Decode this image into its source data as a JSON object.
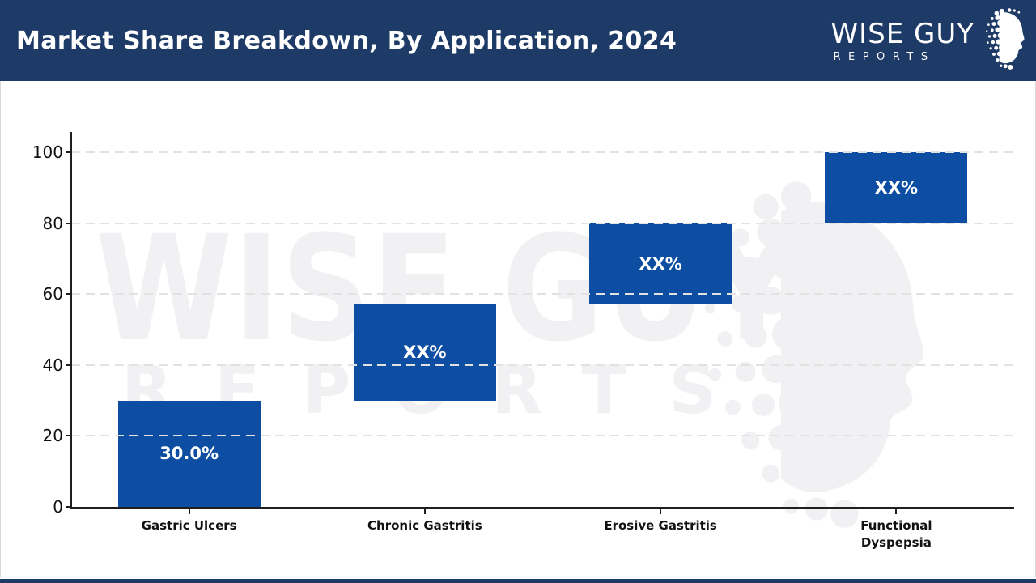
{
  "header": {
    "title": "Market Share Breakdown, By Application, 2024",
    "logo": {
      "brand": "WISE GUY",
      "sub": "REPORTS"
    }
  },
  "watermark": {
    "brand": "WISE GUY",
    "sub": "REPORTS"
  },
  "chart_data": {
    "type": "bar",
    "subtype": "floating-segment-breakdown",
    "title": "Market Share Breakdown, By Application, 2024",
    "categories": [
      "Gastric Ulcers",
      "Chronic Gastritis",
      "Erosive Gastritis",
      "Functional\nDyspepsia"
    ],
    "series": [
      {
        "name": "Market share (%)",
        "segments": [
          {
            "category": "Gastric Ulcers",
            "start": 0,
            "end": 30,
            "label": "30.0%"
          },
          {
            "category": "Chronic Gastritis",
            "start": 30,
            "end": 57,
            "label": "XX%"
          },
          {
            "category": "Erosive Gastritis",
            "start": 57,
            "end": 80,
            "label": "XX%"
          },
          {
            "category": "Functional Dyspepsia",
            "start": 80,
            "end": 100,
            "label": "XX%"
          }
        ]
      }
    ],
    "yticks": [
      0,
      20,
      40,
      60,
      80,
      100
    ],
    "ylim": [
      0,
      105.7
    ],
    "xlabel": "",
    "ylabel": "",
    "grid": "horizontal dashed",
    "legend": "none",
    "colors": {
      "bar": "#0d4da2",
      "bar_label": "#ffffff",
      "header_bg": "#1e3a66",
      "gridline": "#e2e2e2",
      "axis": "#1f1f1f",
      "watermark": "#f1f1f3"
    }
  }
}
